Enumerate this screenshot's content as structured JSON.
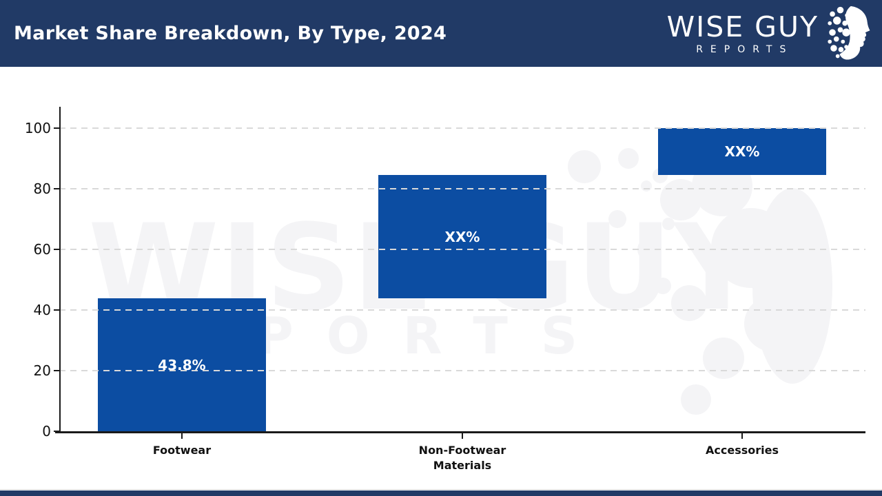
{
  "header": {
    "title": "Market Share Breakdown, By Type, 2024",
    "logo": {
      "name": "WISE GUY",
      "sub": "REPORTS"
    }
  },
  "watermark": {
    "line1": "WISE GUY",
    "line2": "REPORTS"
  },
  "chart_data": {
    "type": "bar",
    "variant": "waterfall",
    "title": "Market Share Breakdown, By Type, 2024",
    "xlabel": "",
    "ylabel": "",
    "ylim": [
      0,
      105
    ],
    "yticks": [
      0,
      20,
      40,
      60,
      80,
      100
    ],
    "grid": "dashed-horizontal",
    "legend": "none",
    "categories": [
      "Footwear",
      "Non-Footwear\nMaterials",
      "Accessories"
    ],
    "segments": [
      {
        "category": "Footwear",
        "start": 0,
        "end": 43.8,
        "value": 43.8,
        "label": "43.8%"
      },
      {
        "category": "Non-Footwear Materials",
        "start": 43.8,
        "end": 84.4,
        "value": 40.6,
        "label": "XX%"
      },
      {
        "category": "Accessories",
        "start": 84.4,
        "end": 100,
        "value": 15.6,
        "label": "XX%"
      }
    ]
  },
  "colors": {
    "header_bg": "#213a66",
    "footer_bg": "#213a66",
    "bar": "#0c4da2",
    "bar_label": "#ffffff",
    "grid": "#d9d9d9",
    "axis": "#1a1a1a",
    "watermark": "#f4f4f6"
  }
}
